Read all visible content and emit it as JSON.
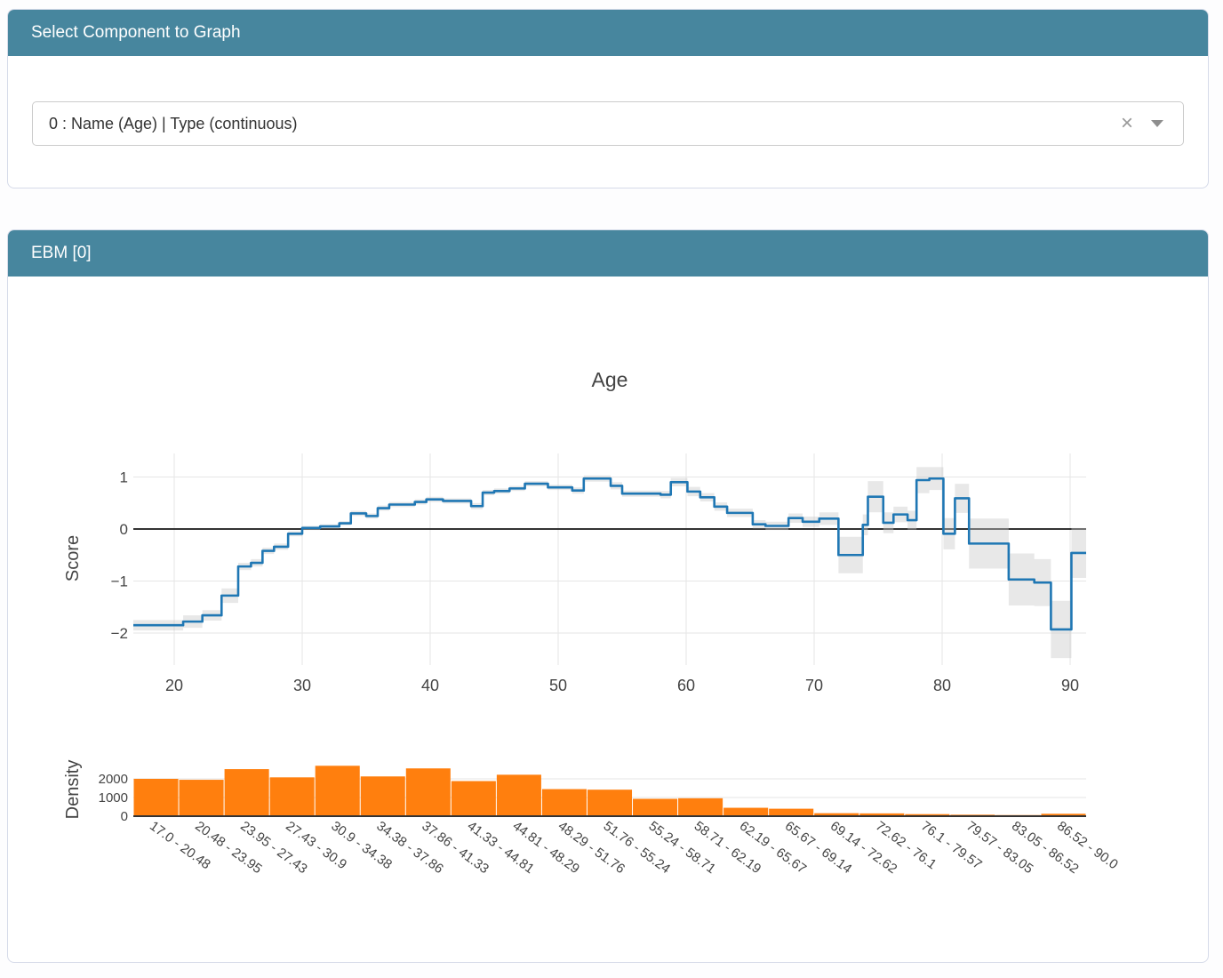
{
  "select_card": {
    "header": "Select Component to Graph",
    "dropdown": {
      "value": "0 : Name (Age) | Type (continuous)",
      "clear_glyph": "×"
    }
  },
  "ebm_card": {
    "header": "EBM [0]"
  },
  "chart_data": {
    "type": "line",
    "title": "Age",
    "score_plot": {
      "ylabel": "Score",
      "xlabel": "",
      "ylim": [
        -2.6,
        1.45
      ],
      "xlim": [
        16.8,
        91.3
      ],
      "grid": true,
      "yticks": [
        1,
        0,
        -1,
        -2
      ],
      "ytick_labels": [
        "1",
        "0",
        "−1",
        "−2"
      ],
      "xticks": [
        20,
        30,
        40,
        50,
        60,
        70,
        80,
        90
      ],
      "xtick_labels": [
        "20",
        "30",
        "40",
        "50",
        "60",
        "70",
        "80",
        "90"
      ],
      "line_color": "#1f77b4",
      "band_color": "#c9c9c9",
      "zero_line_color": "#333333",
      "segments": [
        {
          "x0": 16.8,
          "x1": 20.7,
          "y": -1.85,
          "e": 0.1
        },
        {
          "x0": 20.7,
          "x1": 22.2,
          "y": -1.78,
          "e": 0.12
        },
        {
          "x0": 22.2,
          "x1": 23.7,
          "y": -1.66,
          "e": 0.1
        },
        {
          "x0": 23.7,
          "x1": 25.0,
          "y": -1.28,
          "e": 0.14
        },
        {
          "x0": 25.0,
          "x1": 26.0,
          "y": -0.72,
          "e": 0.07
        },
        {
          "x0": 26.0,
          "x1": 26.9,
          "y": -0.65,
          "e": 0.07
        },
        {
          "x0": 26.9,
          "x1": 27.8,
          "y": -0.42,
          "e": 0.06
        },
        {
          "x0": 27.8,
          "x1": 28.9,
          "y": -0.34,
          "e": 0.06
        },
        {
          "x0": 28.9,
          "x1": 30.0,
          "y": -0.09,
          "e": 0.05
        },
        {
          "x0": 30.0,
          "x1": 31.4,
          "y": 0.02,
          "e": 0.04
        },
        {
          "x0": 31.4,
          "x1": 32.9,
          "y": 0.05,
          "e": 0.04
        },
        {
          "x0": 32.9,
          "x1": 33.8,
          "y": 0.11,
          "e": 0.04
        },
        {
          "x0": 33.8,
          "x1": 35.0,
          "y": 0.3,
          "e": 0.05
        },
        {
          "x0": 35.0,
          "x1": 35.9,
          "y": 0.25,
          "e": 0.05
        },
        {
          "x0": 35.9,
          "x1": 36.8,
          "y": 0.4,
          "e": 0.05
        },
        {
          "x0": 36.8,
          "x1": 38.8,
          "y": 0.47,
          "e": 0.05
        },
        {
          "x0": 38.8,
          "x1": 39.7,
          "y": 0.52,
          "e": 0.05
        },
        {
          "x0": 39.7,
          "x1": 41.0,
          "y": 0.57,
          "e": 0.05
        },
        {
          "x0": 41.0,
          "x1": 43.2,
          "y": 0.54,
          "e": 0.05
        },
        {
          "x0": 43.2,
          "x1": 44.1,
          "y": 0.44,
          "e": 0.06
        },
        {
          "x0": 44.1,
          "x1": 45.0,
          "y": 0.7,
          "e": 0.05
        },
        {
          "x0": 45.0,
          "x1": 46.2,
          "y": 0.73,
          "e": 0.05
        },
        {
          "x0": 46.2,
          "x1": 47.4,
          "y": 0.78,
          "e": 0.05
        },
        {
          "x0": 47.4,
          "x1": 49.2,
          "y": 0.87,
          "e": 0.05
        },
        {
          "x0": 49.2,
          "x1": 51.1,
          "y": 0.8,
          "e": 0.05
        },
        {
          "x0": 51.1,
          "x1": 52.0,
          "y": 0.74,
          "e": 0.06
        },
        {
          "x0": 52.0,
          "x1": 54.1,
          "y": 0.97,
          "e": 0.06
        },
        {
          "x0": 54.1,
          "x1": 55.0,
          "y": 0.83,
          "e": 0.07
        },
        {
          "x0": 55.0,
          "x1": 58.0,
          "y": 0.68,
          "e": 0.06
        },
        {
          "x0": 58.0,
          "x1": 58.8,
          "y": 0.66,
          "e": 0.07
        },
        {
          "x0": 58.8,
          "x1": 60.1,
          "y": 0.9,
          "e": 0.08
        },
        {
          "x0": 60.1,
          "x1": 61.1,
          "y": 0.72,
          "e": 0.09
        },
        {
          "x0": 61.1,
          "x1": 62.2,
          "y": 0.61,
          "e": 0.08
        },
        {
          "x0": 62.2,
          "x1": 63.2,
          "y": 0.43,
          "e": 0.08
        },
        {
          "x0": 63.2,
          "x1": 65.2,
          "y": 0.31,
          "e": 0.08
        },
        {
          "x0": 65.2,
          "x1": 66.2,
          "y": 0.09,
          "e": 0.08
        },
        {
          "x0": 66.2,
          "x1": 68.0,
          "y": 0.06,
          "e": 0.08
        },
        {
          "x0": 68.0,
          "x1": 69.1,
          "y": 0.21,
          "e": 0.09
        },
        {
          "x0": 69.1,
          "x1": 70.4,
          "y": 0.14,
          "e": 0.1
        },
        {
          "x0": 70.4,
          "x1": 71.9,
          "y": 0.2,
          "e": 0.12
        },
        {
          "x0": 71.9,
          "x1": 73.8,
          "y": -0.5,
          "e": 0.35
        },
        {
          "x0": 73.8,
          "x1": 74.2,
          "y": 0.08,
          "e": 0.2
        },
        {
          "x0": 74.2,
          "x1": 75.4,
          "y": 0.62,
          "e": 0.3
        },
        {
          "x0": 75.4,
          "x1": 76.2,
          "y": 0.12,
          "e": 0.2
        },
        {
          "x0": 76.2,
          "x1": 77.3,
          "y": 0.28,
          "e": 0.15
        },
        {
          "x0": 77.3,
          "x1": 78.0,
          "y": 0.17,
          "e": 0.18
        },
        {
          "x0": 78.0,
          "x1": 79.0,
          "y": 0.94,
          "e": 0.25
        },
        {
          "x0": 79.0,
          "x1": 80.1,
          "y": 0.97,
          "e": 0.22
        },
        {
          "x0": 80.1,
          "x1": 81.0,
          "y": -0.09,
          "e": 0.3
        },
        {
          "x0": 81.0,
          "x1": 82.1,
          "y": 0.59,
          "e": 0.28
        },
        {
          "x0": 82.1,
          "x1": 85.2,
          "y": -0.28,
          "e": 0.48
        },
        {
          "x0": 85.2,
          "x1": 87.2,
          "y": -0.97,
          "e": 0.5
        },
        {
          "x0": 87.2,
          "x1": 88.5,
          "y": -1.03,
          "e": 0.45
        },
        {
          "x0": 88.5,
          "x1": 90.1,
          "y": -1.93,
          "e": 0.55
        },
        {
          "x0": 90.1,
          "x1": 91.3,
          "y": -0.46,
          "e": 0.48
        }
      ]
    },
    "density_plot": {
      "type": "bar",
      "ylabel": "Density",
      "ylim": [
        0,
        3000
      ],
      "yticks": [
        0,
        1000,
        2000
      ],
      "ytick_labels": [
        "0",
        "1000",
        "2000"
      ],
      "bar_color": "#ff7f0e",
      "bins": [
        {
          "label": "17.0 - 20.48",
          "value": 2000
        },
        {
          "label": "20.48 - 23.95",
          "value": 1950
        },
        {
          "label": "23.95 - 27.43",
          "value": 2520
        },
        {
          "label": "27.43 - 30.9",
          "value": 2080
        },
        {
          "label": "30.9 - 34.38",
          "value": 2700
        },
        {
          "label": "34.38 - 37.86",
          "value": 2130
        },
        {
          "label": "37.86 - 41.33",
          "value": 2560
        },
        {
          "label": "41.33 - 44.81",
          "value": 1880
        },
        {
          "label": "44.81 - 48.29",
          "value": 2220
        },
        {
          "label": "48.29 - 51.76",
          "value": 1450
        },
        {
          "label": "51.76 - 55.24",
          "value": 1420
        },
        {
          "label": "55.24 - 58.71",
          "value": 930
        },
        {
          "label": "58.71 - 62.19",
          "value": 960
        },
        {
          "label": "62.19 - 65.67",
          "value": 450
        },
        {
          "label": "65.67 - 69.14",
          "value": 400
        },
        {
          "label": "69.14 - 72.62",
          "value": 160
        },
        {
          "label": "72.62 - 76.1",
          "value": 150
        },
        {
          "label": "76.1 - 79.57",
          "value": 110
        },
        {
          "label": "79.57 - 83.05",
          "value": 80
        },
        {
          "label": "83.05 - 86.52",
          "value": 60
        },
        {
          "label": "86.52 - 90.0",
          "value": 130
        }
      ]
    }
  }
}
